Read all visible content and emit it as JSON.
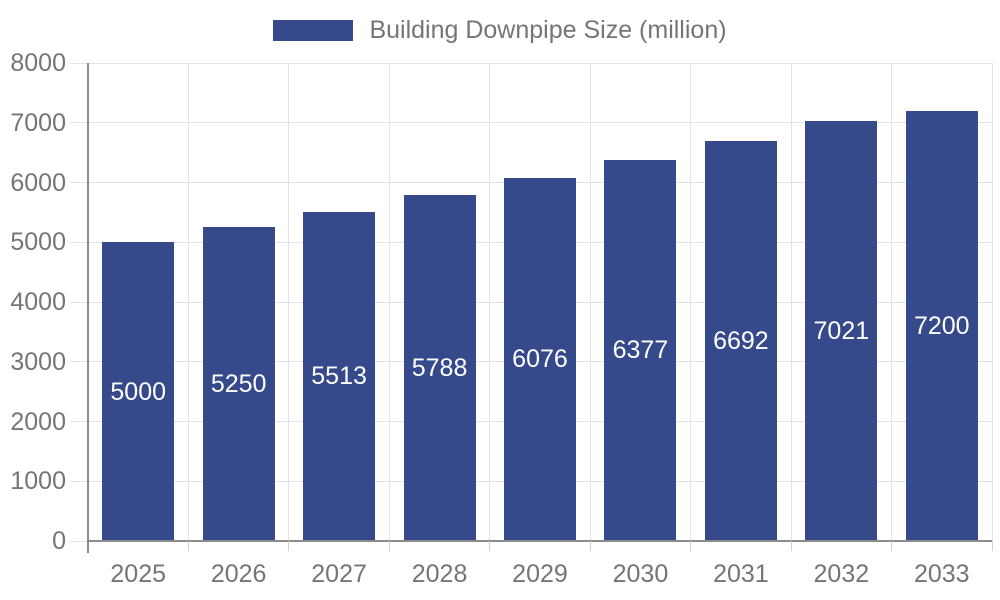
{
  "chart_data": {
    "type": "bar",
    "title": "Building Downpipe Size (million)",
    "series_name": "Building Downpipe Size (million)",
    "categories": [
      "2025",
      "2026",
      "2027",
      "2028",
      "2029",
      "2030",
      "2031",
      "2032",
      "2033"
    ],
    "values": [
      5000,
      5250,
      5513,
      5788,
      6076,
      6377,
      6692,
      7021,
      7200
    ],
    "xlabel": "",
    "ylabel": "",
    "ylim": [
      0,
      8000
    ],
    "y_ticks": [
      0,
      1000,
      2000,
      3000,
      4000,
      5000,
      6000,
      7000,
      8000
    ],
    "grid": true,
    "legend_position": "top-center",
    "value_labels": "inside-center-white",
    "bar_color": "#36498A",
    "value_label_color": "#FFFFFF",
    "axis_text_color": "#757575",
    "grid_color": "#E3E3E3",
    "axis_line_color": "#8C8C8C",
    "tick_color": "#CFCFCF",
    "background_color": "#FFFFFF"
  },
  "legend": {
    "label": "Building Downpipe Size (million)"
  }
}
